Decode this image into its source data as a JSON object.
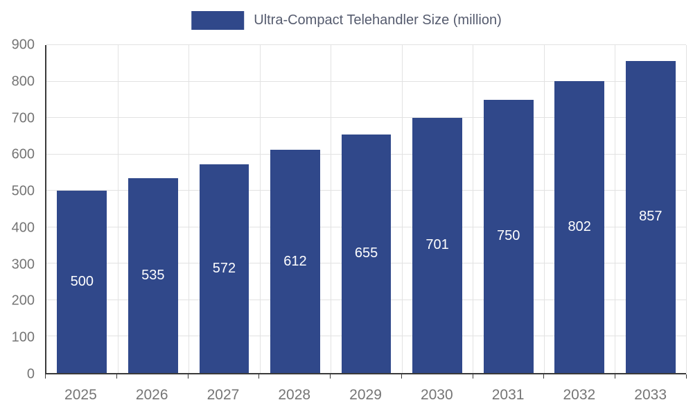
{
  "chart_data": {
    "type": "bar",
    "title": "Ultra-Compact Telehandler Size (million)",
    "categories": [
      "2025",
      "2026",
      "2027",
      "2028",
      "2029",
      "2030",
      "2031",
      "2032",
      "2033"
    ],
    "values": [
      500,
      535,
      572,
      612,
      655,
      701,
      750,
      802,
      857
    ],
    "xlabel": "",
    "ylabel": "",
    "ylim": [
      0,
      900
    ],
    "ytick_step": 100,
    "grid": true,
    "legend_position": "top",
    "bar_color": "#30488a",
    "value_label_color": "#ffffff",
    "axis_text_color": "#757575",
    "title_color": "#555b6e",
    "gridline_color": "#e2e2e2",
    "axis_line_color": "#3a3a3a"
  }
}
